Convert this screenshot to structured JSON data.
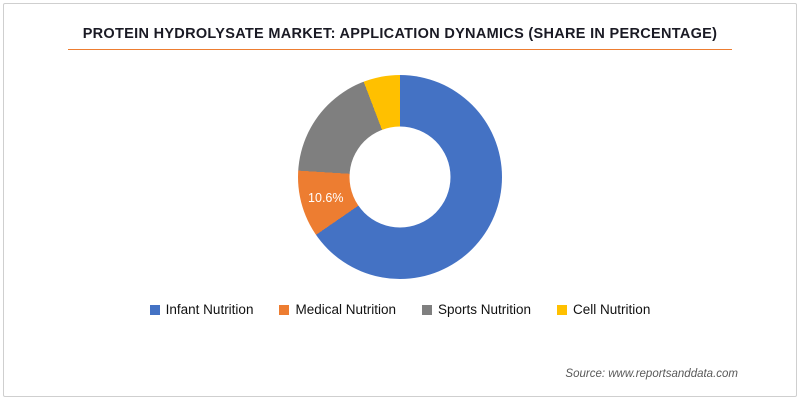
{
  "header": {
    "title": "PROTEIN HYDROLYSATE MARKET: APPLICATION DYNAMICS (SHARE IN PERCENTAGE)",
    "underline_color": "#ED7D31"
  },
  "source": "Source: www.reportsanddata.com",
  "chart_data": {
    "type": "pie",
    "subtype": "donut",
    "title": "PROTEIN HYDROLYSATE MARKET: APPLICATION DYNAMICS (SHARE IN PERCENTAGE)",
    "start_angle_deg": 0,
    "direction": "clockwise",
    "inner_radius_pct": 49,
    "legend_position": "bottom",
    "segments": [
      {
        "label": "Infant Nutrition",
        "value": 65.4,
        "color": "#4472C4",
        "data_label": ""
      },
      {
        "label": "Medical Nutrition",
        "value": 10.6,
        "color": "#ED7D31",
        "data_label": "10.6%"
      },
      {
        "label": "Sports Nutrition",
        "value": 18.2,
        "color": "#7F7F7F",
        "data_label": ""
      },
      {
        "label": "Cell Nutrition",
        "value": 5.8,
        "color": "#FFC000",
        "data_label": ""
      }
    ]
  }
}
